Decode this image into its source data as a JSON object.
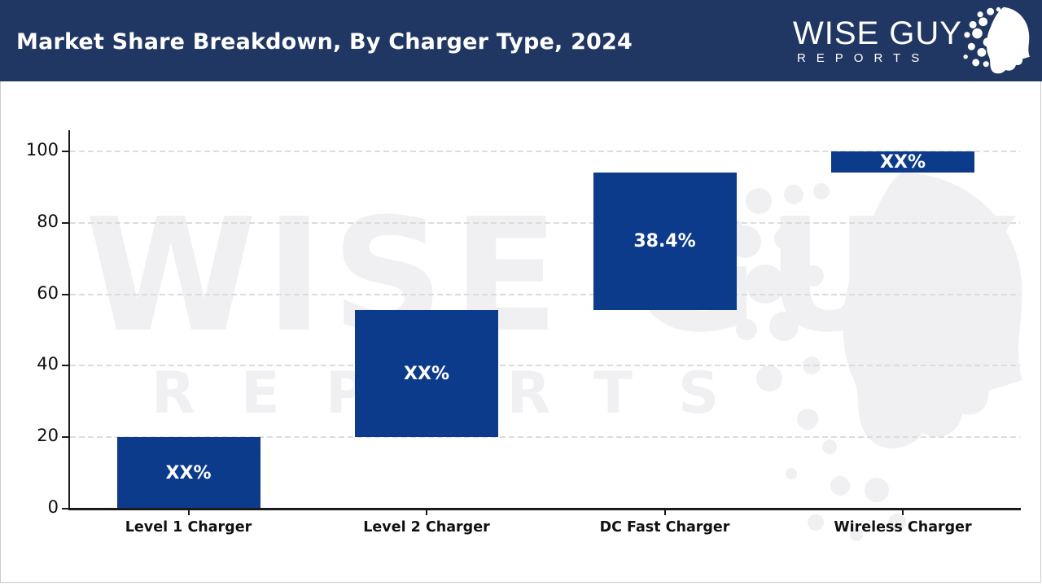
{
  "header": {
    "title": "Market Share Breakdown, By Charger Type, 2024",
    "logo": {
      "line1": "WISE GUY",
      "line2": "REPORTS"
    }
  },
  "watermark": {
    "line1": "WISE GUY",
    "line2": "REPORTS"
  },
  "colors": {
    "header_bg": "#203663",
    "bar": "#0c3b8b",
    "gridline": "#dcdcdc",
    "axis": "#1a1a1a",
    "bar_label": "#ffffff",
    "watermark": "#f0f0f2",
    "frame_border": "#cbcbcb"
  },
  "chart_data": {
    "type": "bar",
    "subtype": "waterfall",
    "title": "Market Share Breakdown, By Charger Type, 2024",
    "categories": [
      "Level 1 Charger",
      "Level 2 Charger",
      "DC Fast Charger",
      "Wireless Charger"
    ],
    "segments": [
      {
        "category": "Level 1 Charger",
        "start": 0,
        "end": 20,
        "label": "XX%"
      },
      {
        "category": "Level 2 Charger",
        "start": 20,
        "end": 55.6,
        "label": "XX%"
      },
      {
        "category": "DC Fast Charger",
        "start": 55.6,
        "end": 94,
        "label": "38.4%"
      },
      {
        "category": "Wireless Charger",
        "start": 94,
        "end": 100,
        "label": "XX%"
      }
    ],
    "xlabel": "",
    "ylabel": "",
    "ylim": [
      0,
      100
    ],
    "yticks": [
      0,
      20,
      40,
      60,
      80,
      100
    ],
    "grid": "dashed-horizontal",
    "legend": null,
    "bar_color": "#0c3b8b"
  }
}
